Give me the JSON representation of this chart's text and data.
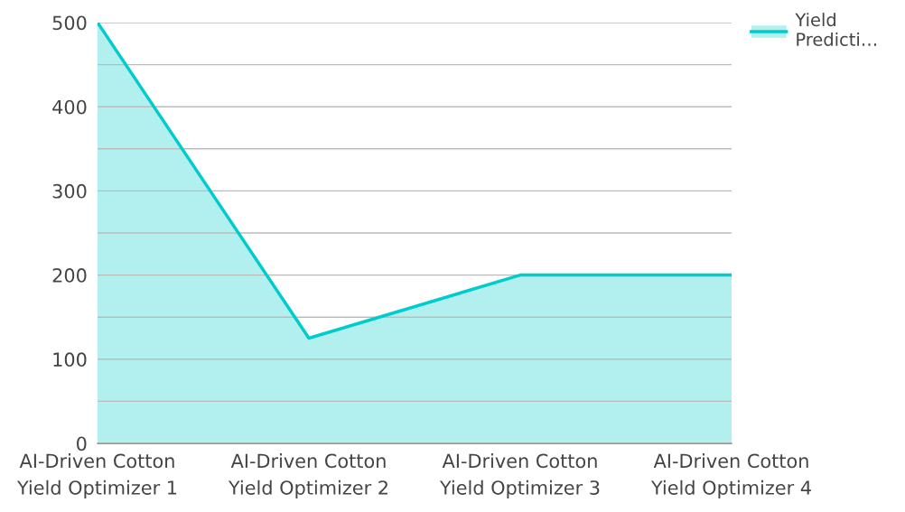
{
  "chart_data": {
    "type": "area",
    "categories": [
      "AI-Driven Cotton\nYield Optimizer 1",
      "AI-Driven Cotton\nYield Optimizer 2",
      "AI-Driven Cotton\nYield Optimizer 3",
      "AI-Driven Cotton\nYield Optimizer 4"
    ],
    "series": [
      {
        "name": "Yield\nPredicti…",
        "color": "#00cccc",
        "values": [
          500,
          125,
          200,
          200
        ]
      }
    ],
    "ylim": [
      0,
      500
    ],
    "yticks": [
      0,
      {
        "value": 50,
        "label": null
      },
      100,
      {
        "value": 150,
        "label": null
      },
      200,
      {
        "value": 250,
        "label": null
      },
      300,
      {
        "value": 350,
        "label": null
      },
      400,
      {
        "value": 450,
        "label": null
      },
      500
    ],
    "grid": "y",
    "legend": "top right"
  }
}
